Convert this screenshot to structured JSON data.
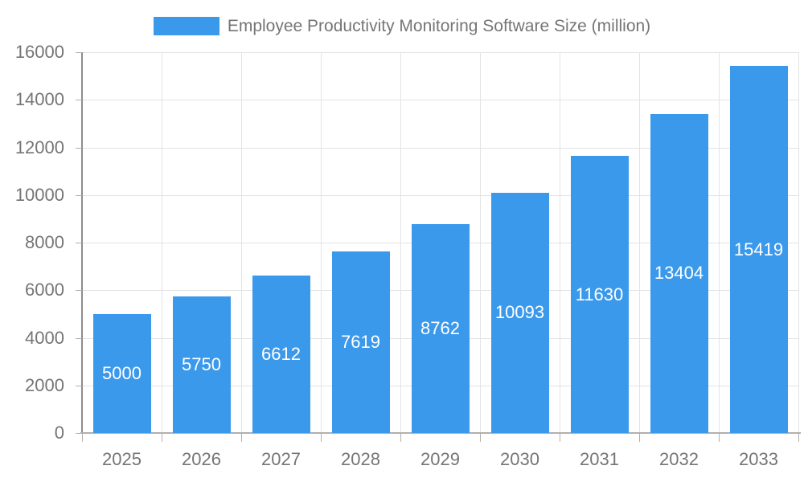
{
  "chart_data": {
    "type": "bar",
    "title": "Employee Productivity Monitoring Software Size (million)",
    "categories": [
      "2025",
      "2026",
      "2027",
      "2028",
      "2029",
      "2030",
      "2031",
      "2032",
      "2033"
    ],
    "values": [
      5000,
      5750,
      6612,
      7619,
      8762,
      10093,
      11630,
      13404,
      15419
    ],
    "value_label_position": "inside-center",
    "xlabel": "",
    "ylabel": "",
    "ylim": [
      0,
      16000
    ],
    "y_tick_step": 2000,
    "y_tick_labels": [
      "0",
      "2000",
      "4000",
      "6000",
      "8000",
      "10000",
      "12000",
      "14000",
      "16000"
    ],
    "grid": true,
    "legend_position": "top-center",
    "colors": {
      "bar": "#3b99ec",
      "value_label": "#ffffff",
      "axis_text": "#757575",
      "grid_line": "#e3e3e3",
      "y_axis_line": "#8c8c8c",
      "x_axis_line": "#b0b0b0",
      "tick": "#b0b0b0",
      "background": "#ffffff"
    }
  }
}
